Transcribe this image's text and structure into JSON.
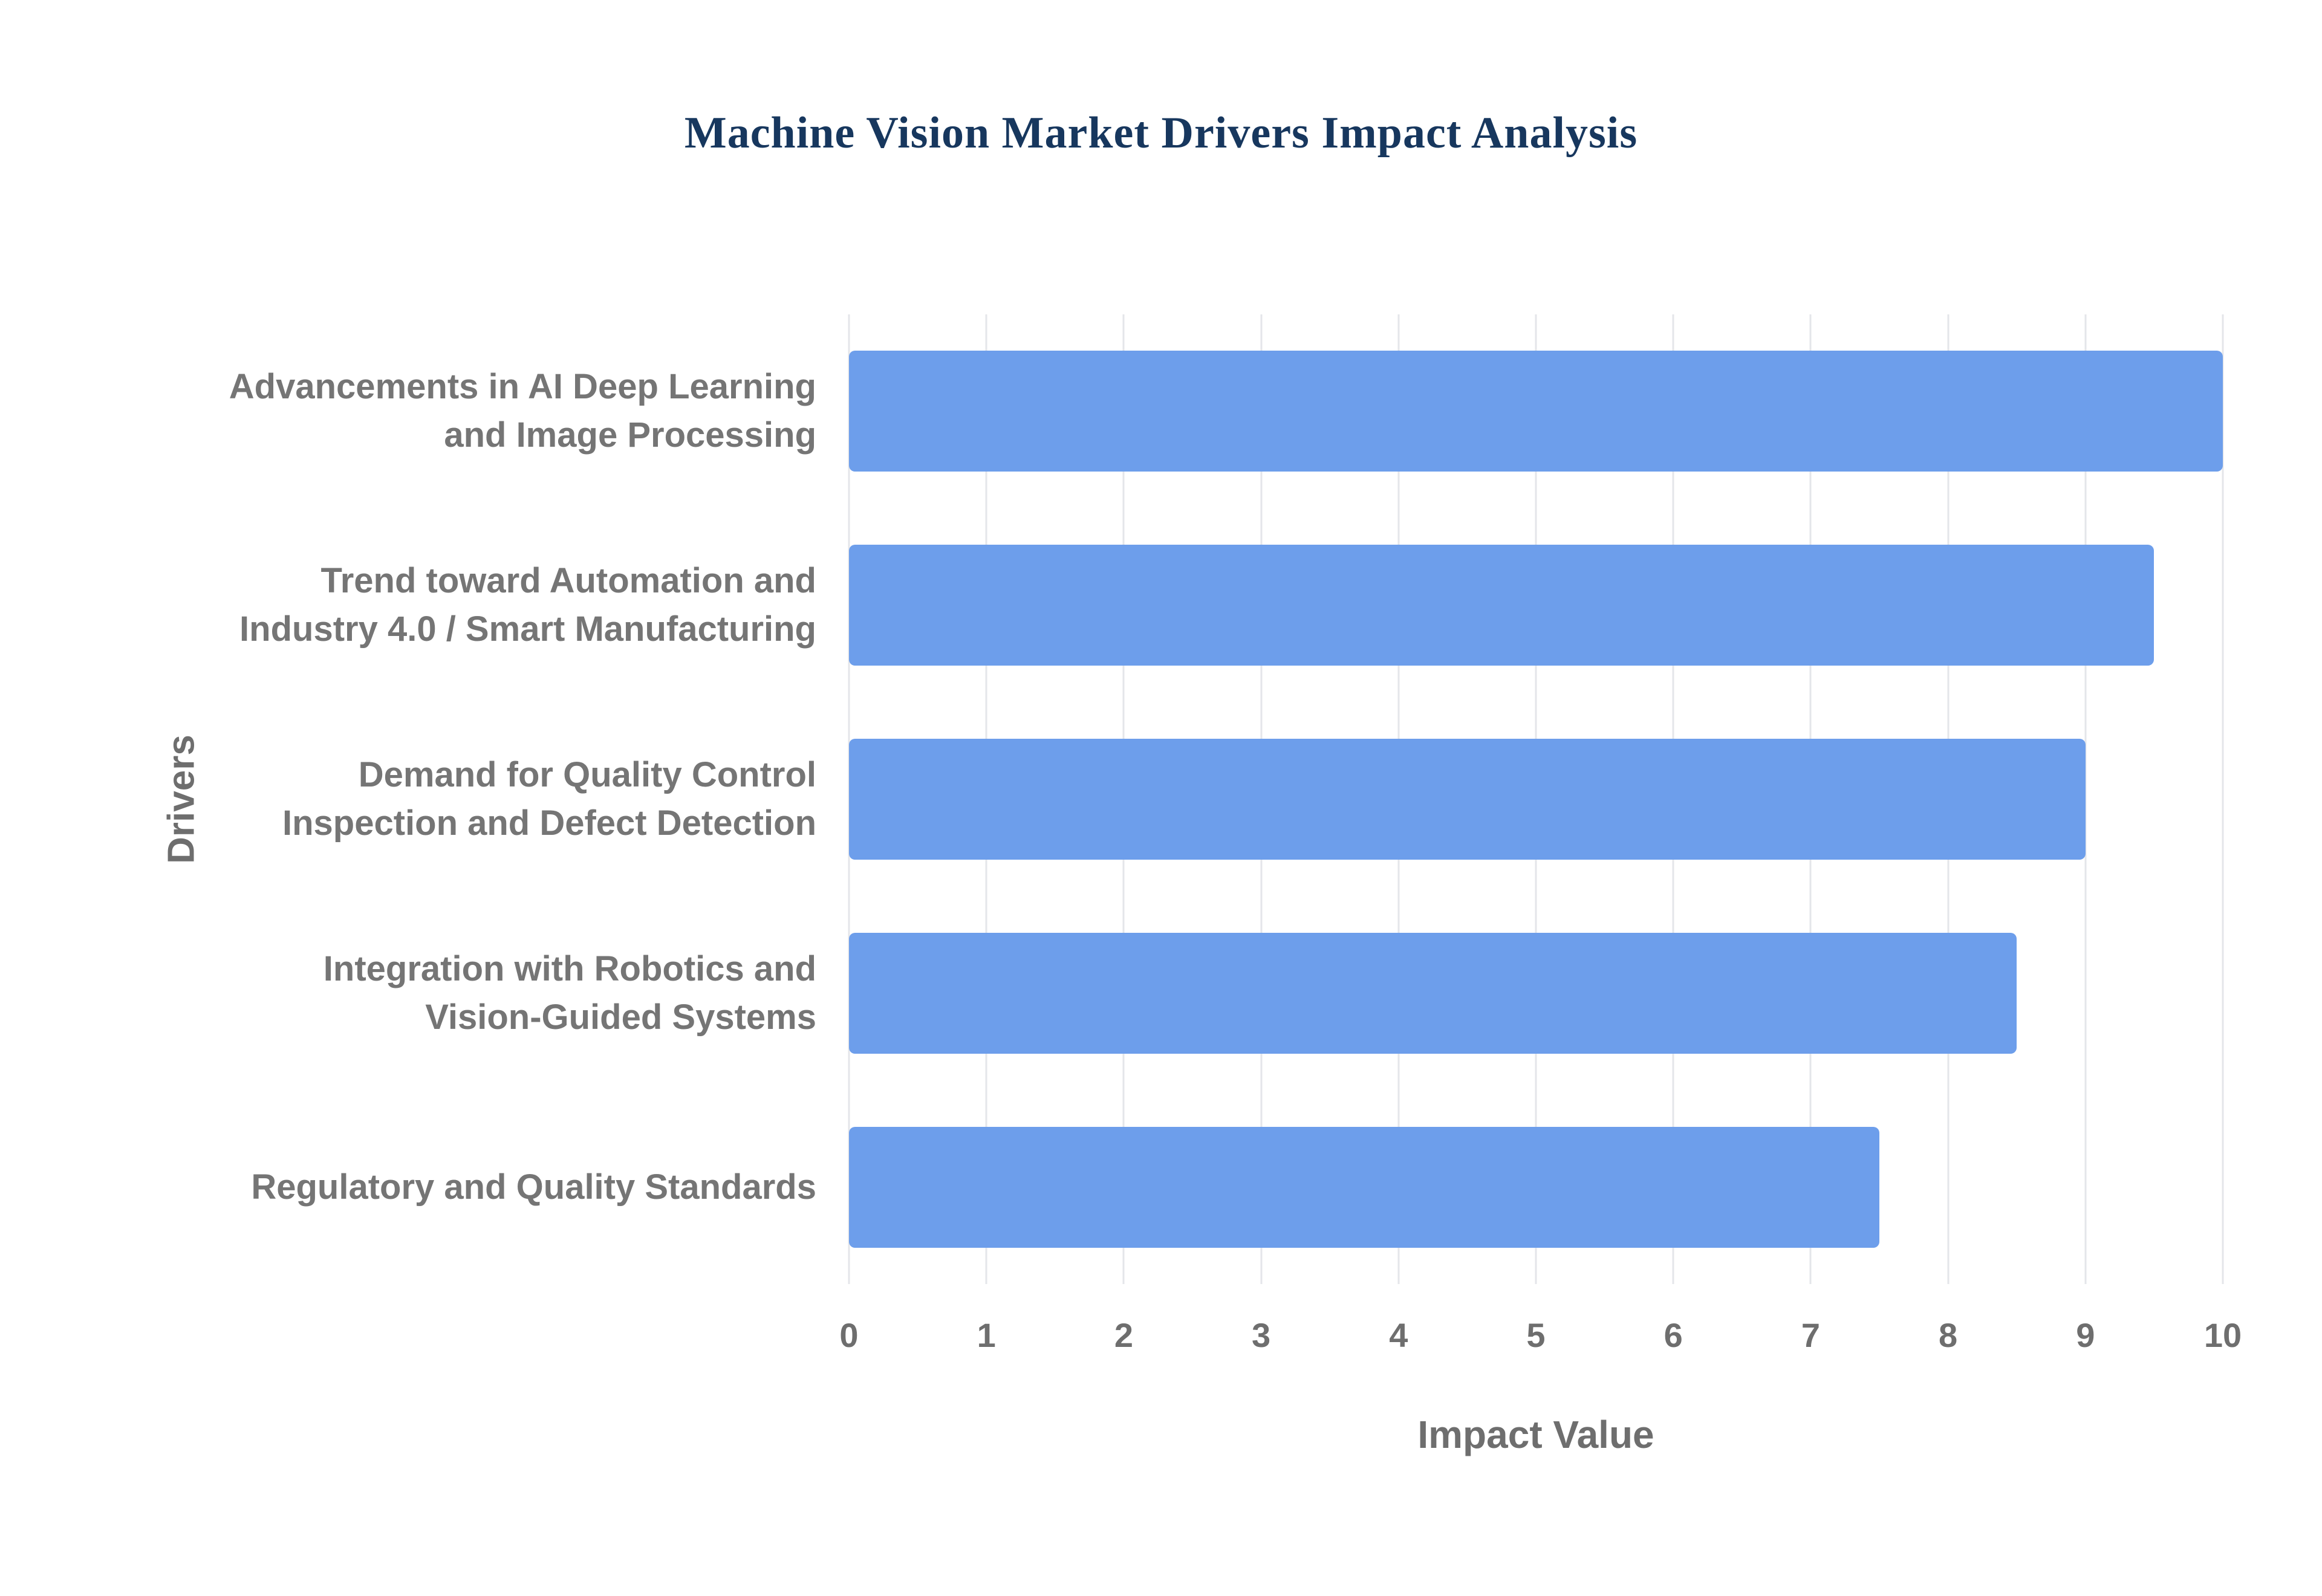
{
  "title": "Machine Vision Market Drivers Impact Analysis",
  "chart_data": {
    "type": "bar",
    "orientation": "horizontal",
    "title": "Machine Vision Market Drivers Impact Analysis",
    "categories": [
      "Advancements in AI Deep Learning and Image Processing",
      "Trend toward Automation and Industry 4.0 / Smart Manufacturing",
      "Demand for Quality Control Inspection and Defect Detection",
      "Integration with Robotics and Vision-Guided Systems",
      "Regulatory and Quality Standards"
    ],
    "values": [
      10,
      9.5,
      9,
      8.5,
      7.5
    ],
    "xlabel": "Impact Value",
    "ylabel": "Drivers",
    "xlim": [
      0,
      10
    ],
    "xticks": [
      0,
      1,
      2,
      3,
      4,
      5,
      6,
      7,
      8,
      9,
      10
    ],
    "grid": true,
    "legend": false,
    "colors": {
      "bar": "#6D9EEB",
      "title": "#17375E",
      "label": "#757575",
      "tick": "#6E6E6E",
      "grid": "#E4E6EA"
    }
  }
}
